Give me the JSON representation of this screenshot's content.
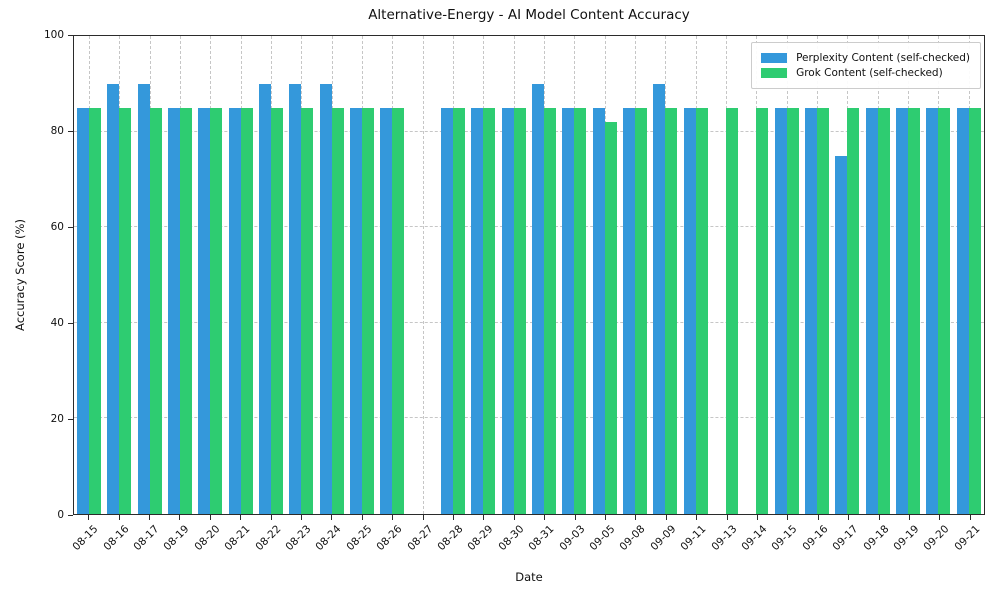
{
  "figure": {
    "background": "#ffffff",
    "spine_color": "#2b2b2b",
    "grid_color": "#c6c6c6"
  },
  "chart_data": {
    "type": "bar",
    "title": "Alternative-Energy - AI Model Content Accuracy",
    "xlabel": "Date",
    "ylabel": "Accuracy Score (%)",
    "ylim": [
      0,
      100
    ],
    "yticks": [
      0,
      20,
      40,
      60,
      80,
      100
    ],
    "grid": true,
    "grid_style": "dashed",
    "legend_position": "upper right",
    "categories": [
      "08-15",
      "08-16",
      "08-17",
      "08-19",
      "08-20",
      "08-21",
      "08-22",
      "08-23",
      "08-24",
      "08-25",
      "08-26",
      "08-27",
      "08-28",
      "08-29",
      "08-30",
      "08-31",
      "09-03",
      "09-05",
      "09-08",
      "09-09",
      "09-11",
      "09-13",
      "09-14",
      "09-15",
      "09-16",
      "09-17",
      "09-18",
      "09-19",
      "09-20",
      "09-21"
    ],
    "series": [
      {
        "key": "perplexity",
        "name": "Perplexity Content (self-checked)",
        "color": "#3498db",
        "values": [
          85,
          90,
          90,
          85,
          85,
          85,
          90,
          90,
          90,
          85,
          85,
          0,
          85,
          85,
          85,
          90,
          85,
          85,
          85,
          90,
          85,
          0,
          0,
          85,
          85,
          75,
          85,
          85,
          85,
          85
        ]
      },
      {
        "key": "grok",
        "name": "Grok Content (self-checked)",
        "color": "#2ecc71",
        "values": [
          85,
          85,
          85,
          85,
          85,
          85,
          85,
          85,
          85,
          85,
          85,
          0,
          85,
          85,
          85,
          85,
          85,
          82,
          85,
          85,
          85,
          85,
          85,
          85,
          85,
          85,
          85,
          85,
          85,
          85
        ]
      }
    ]
  }
}
